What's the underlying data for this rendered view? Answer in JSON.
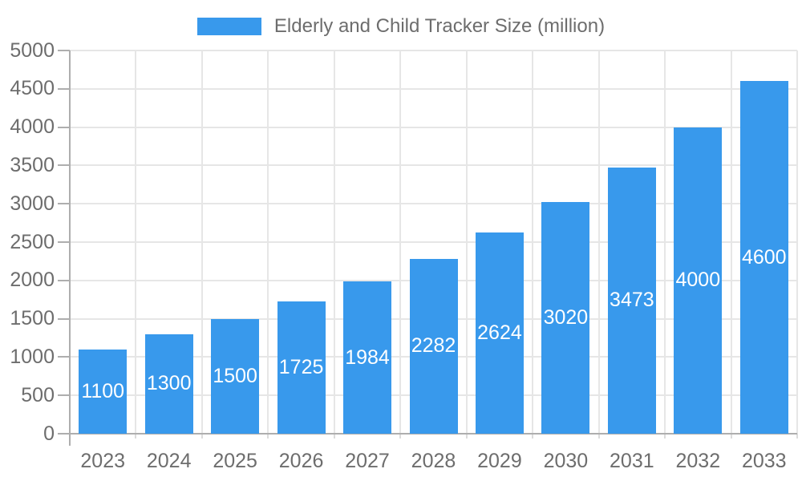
{
  "chart_data": {
    "type": "bar",
    "title": "Elderly and Child Tracker Size (million)",
    "categories": [
      "2023",
      "2024",
      "2025",
      "2026",
      "2027",
      "2028",
      "2029",
      "2030",
      "2031",
      "2032",
      "2033"
    ],
    "values": [
      1100,
      1300,
      1500,
      1725,
      1984,
      2282,
      2624,
      3020,
      3473,
      4000,
      4600
    ],
    "xlabel": "",
    "ylabel": "",
    "ylim": [
      0,
      5000
    ],
    "yticks": [
      0,
      500,
      1000,
      1500,
      2000,
      2500,
      3000,
      3500,
      4000,
      4500,
      5000
    ],
    "grid": true,
    "legend_position": "top",
    "bar_color": "#3899ec",
    "bar_value_label_color": "#ffffff",
    "axis_text_color": "#6d6d6d",
    "axis_line_color": "#aeaeae",
    "gridline_color": "#e6e6e6"
  },
  "legend": {
    "swatch_color": "#3899ec",
    "label": "Elderly and Child Tracker Size (million)"
  }
}
